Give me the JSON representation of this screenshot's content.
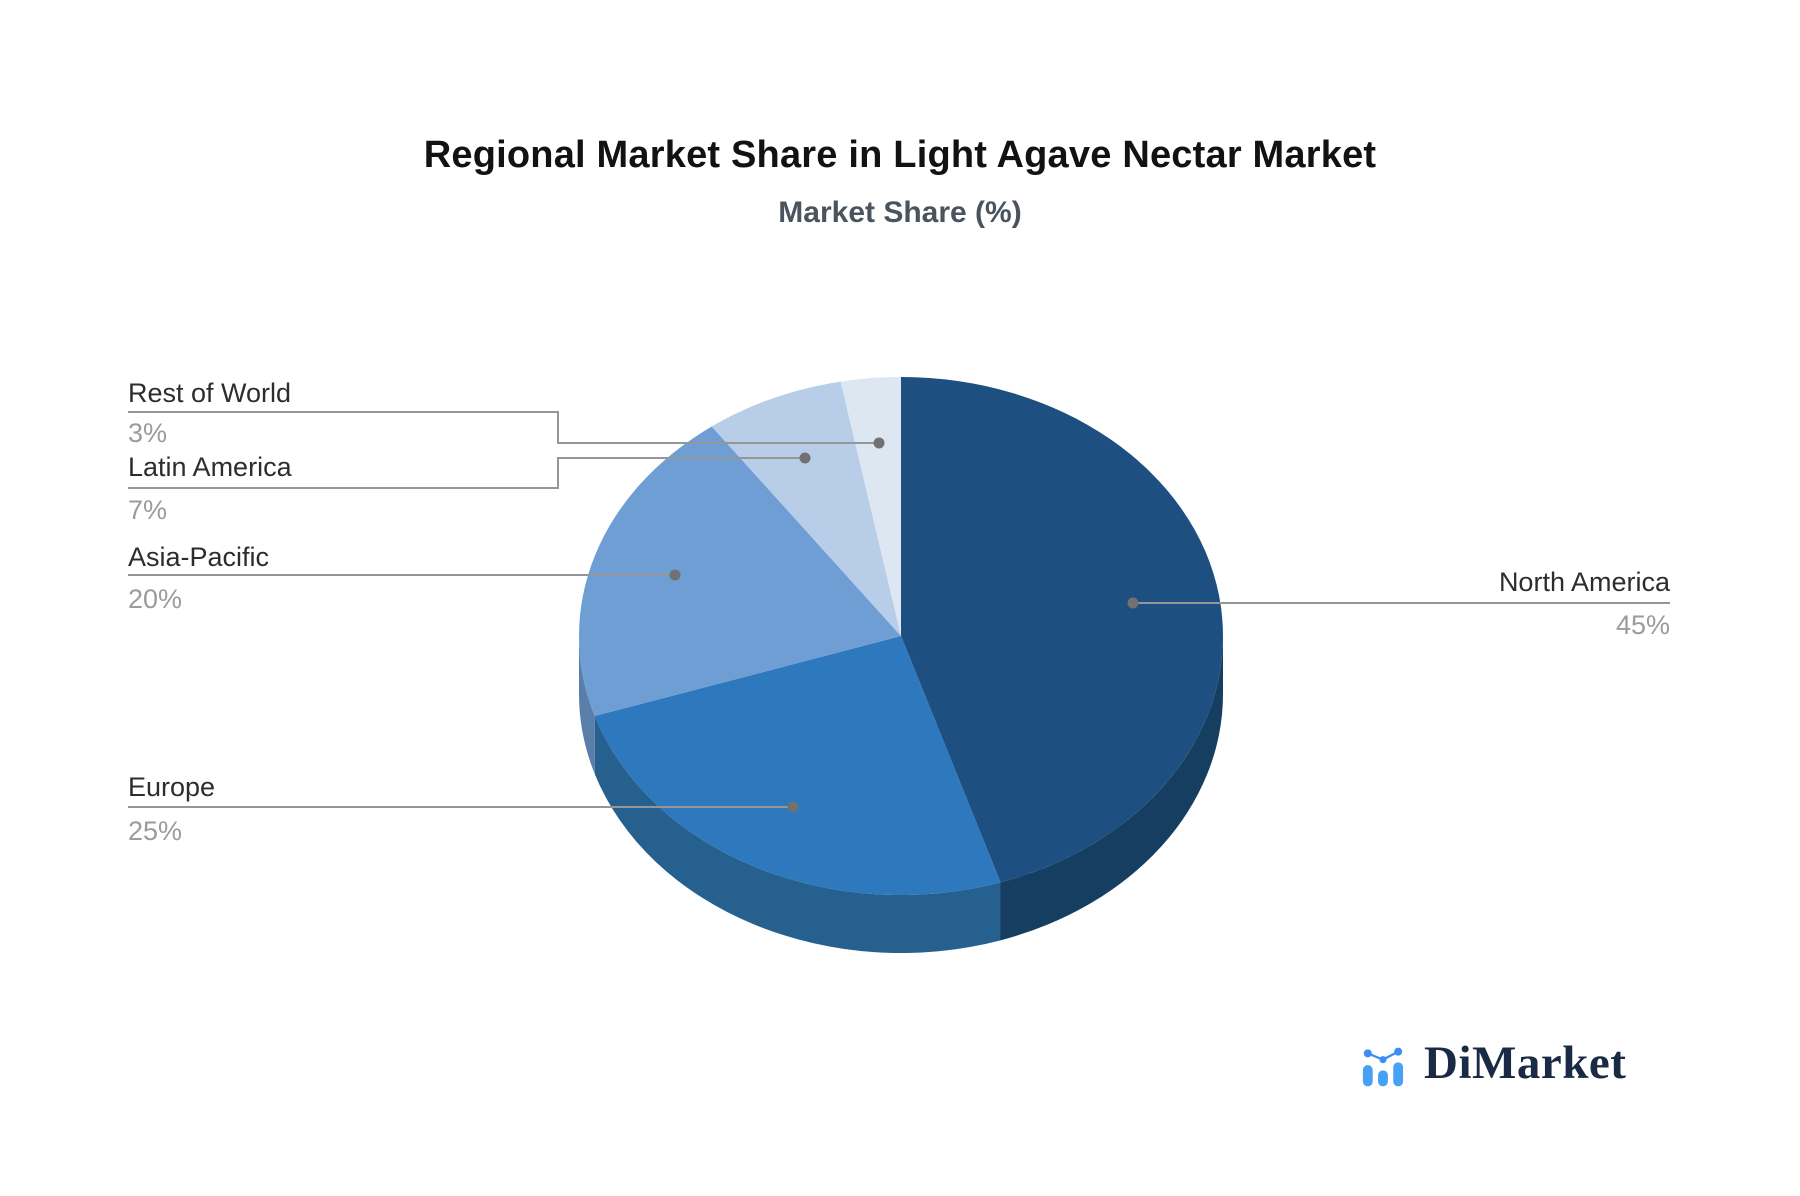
{
  "title": "Regional Market Share in Light Agave Nectar Market",
  "subtitle": "Market Share (%)",
  "brand": {
    "name": "DiMarket",
    "icon": "bar-line-chart-icon",
    "icon_color": "#47a1f5",
    "icon_accent": "#3c8ef0",
    "text_color": "#1b2a44"
  },
  "theme": {
    "title_color": "#121212",
    "subtitle_color": "#4a545e",
    "label_color": "#2d2d2d",
    "value_color": "#9b9b9b",
    "leader_line_color": "#969696",
    "leader_dot_color": "#717171",
    "background": "#ffffff"
  },
  "chart_data": {
    "type": "pie",
    "style": "3d-depth",
    "title": "Regional Market Share in Light Agave Nectar Market",
    "subtitle": "Market Share (%)",
    "unit": "%",
    "start_angle": "12-oclock",
    "direction": "clockwise",
    "legend_position": "callout-labels",
    "slices": [
      {
        "label": "North America",
        "value": 45,
        "display_value": "45%",
        "color": "#1d5080",
        "side_color": "#153e61",
        "callout_side": "right"
      },
      {
        "label": "Europe",
        "value": 25,
        "display_value": "25%",
        "color": "#2e78bd",
        "side_color": "#25608f",
        "callout_side": "left"
      },
      {
        "label": "Asia-Pacific",
        "value": 20,
        "display_value": "20%",
        "color": "#6f9ed4",
        "side_color": "#597fa8",
        "callout_side": "left"
      },
      {
        "label": "Latin America",
        "value": 7,
        "display_value": "7%",
        "color": "#b8cde7",
        "callout_side": "left"
      },
      {
        "label": "Rest of World",
        "value": 3,
        "display_value": "3%",
        "color": "#dde7f1",
        "callout_side": "left"
      }
    ]
  }
}
